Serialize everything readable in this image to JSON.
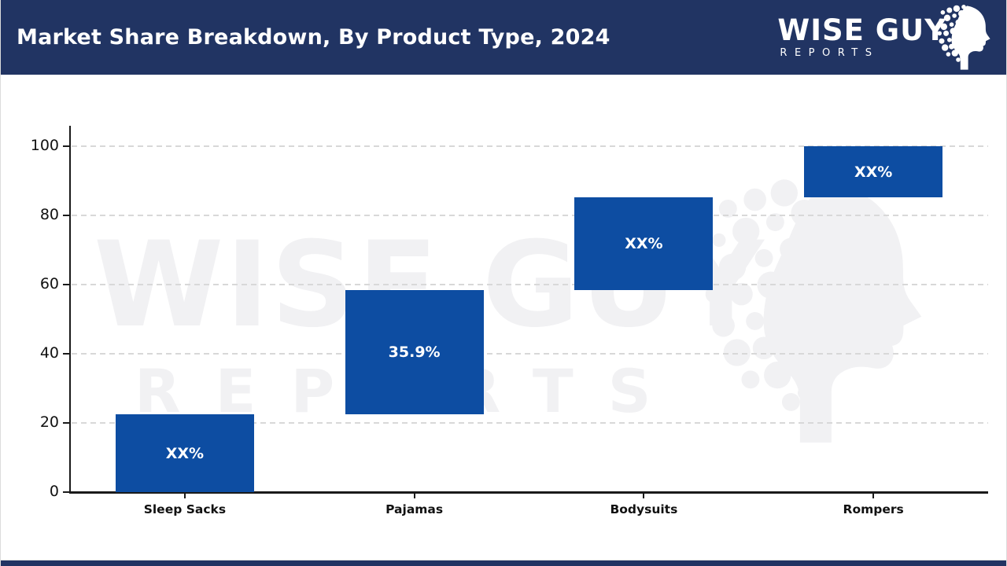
{
  "header": {
    "title": "Market Share Breakdown, By Product Type, 2024",
    "logo": {
      "line1": "WISE GUY",
      "line2": "REPORTS"
    }
  },
  "watermark": {
    "line1": "WISE GUY",
    "line2": "REPORTS"
  },
  "colors": {
    "header_bg": "#213463",
    "footer_bg": "#213463",
    "bar_fill": "#0d4da2",
    "bar_label": "#ffffff",
    "watermark": "#f1f1f3",
    "gridline": "#d8d8d8",
    "axis": "#1a1a1a"
  },
  "chart_data": {
    "type": "bar",
    "subtype": "waterfall-floating-bars",
    "title": "Market Share Breakdown, By Product Type, 2024",
    "categories": [
      "Sleep Sacks",
      "Pajamas",
      "Bodysuits",
      "Rompers"
    ],
    "segments": [
      {
        "category": "Sleep Sacks",
        "base": 0,
        "top": 22.4,
        "value": 22.4,
        "label": "XX%"
      },
      {
        "category": "Pajamas",
        "base": 22.4,
        "top": 58.3,
        "value": 35.9,
        "label": "35.9%"
      },
      {
        "category": "Bodysuits",
        "base": 58.3,
        "top": 85.2,
        "value": 26.9,
        "label": "XX%"
      },
      {
        "category": "Rompers",
        "base": 85.2,
        "top": 100,
        "value": 14.8,
        "label": "XX%"
      }
    ],
    "xlabel": "",
    "ylabel": "",
    "ylim": [
      0,
      100
    ],
    "yticks": [
      0,
      20,
      40,
      60,
      80,
      100
    ],
    "grid": "horizontal-dashed",
    "legend": "none"
  }
}
